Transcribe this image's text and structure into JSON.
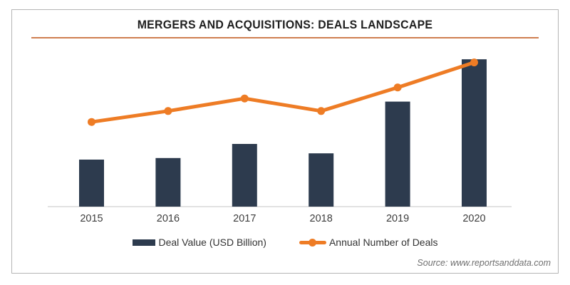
{
  "title": "MERGERS AND ACQUISITIONS: DEALS LANDSCAPE",
  "source": "Source: www.reportsanddata.com",
  "legend": {
    "bar_label": "Deal Value (USD Billion)",
    "line_label": "Annual Number of Deals"
  },
  "colors": {
    "bar": "#2d3b4e",
    "line": "#ee7c25",
    "divider": "#cf7e50",
    "axis": "#d9d9d9",
    "frame_border": "#b5b5b5",
    "tick_text": "#3d3d3d",
    "legend_text": "#333333",
    "source_text": "#6f6f6f",
    "title_text": "#1e1e1e"
  },
  "chart_data": {
    "type": "combo",
    "categories": [
      "2015",
      "2016",
      "2017",
      "2018",
      "2019",
      "2020"
    ],
    "series": [
      {
        "name": "Deal Value (USD Billion)",
        "type": "bar",
        "values": [
          30,
          31,
          40,
          34,
          67,
          94
        ]
      },
      {
        "name": "Annual Number of Deals",
        "type": "line",
        "values": [
          54,
          61,
          69,
          61,
          76,
          92
        ]
      }
    ],
    "title": "MERGERS AND ACQUISITIONS: DEALS LANDSCAPE",
    "xlabel": "",
    "ylabel": "",
    "ylim": [
      0,
      100
    ],
    "value_scale": "relative 0-100 estimate; no y-axis ticks or gridlines shown in chart",
    "grid": false,
    "y_axis_visible": false,
    "legend_position": "bottom"
  }
}
